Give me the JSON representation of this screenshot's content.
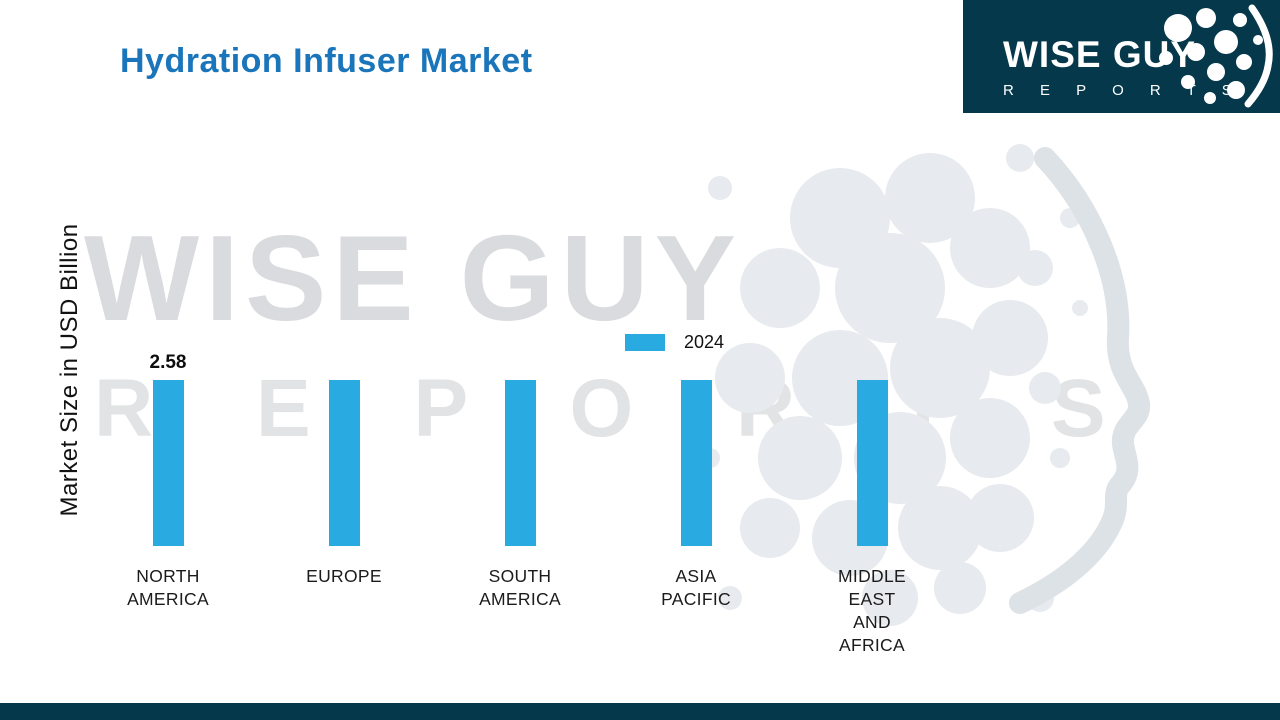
{
  "title": "Hydration Infuser Market",
  "logo": {
    "line1": "WISE GUY",
    "line2": "R E P O R T S"
  },
  "watermark": {
    "line1": "WISE GUY",
    "line2": "R E P O R T S"
  },
  "chart_data": {
    "type": "bar",
    "title": "Hydration Infuser Market",
    "ylabel": "Market Size in USD Billion",
    "xlabel": "",
    "grid": false,
    "legend_position": "top-center",
    "categories": [
      "NORTH AMERICA",
      "EUROPE",
      "SOUTH AMERICA",
      "ASIA PACIFIC",
      "MIDDLE EAST AND AFRICA"
    ],
    "category_lines": [
      [
        "NORTH",
        "AMERICA"
      ],
      [
        "EUROPE"
      ],
      [
        "SOUTH",
        "AMERICA"
      ],
      [
        "ASIA",
        "PACIFIC"
      ],
      [
        "MIDDLE",
        "EAST",
        "AND",
        "AFRICA"
      ]
    ],
    "series": [
      {
        "name": "2024",
        "color": "#29abe2",
        "values": [
          2.58,
          2.58,
          2.58,
          2.58,
          2.58
        ]
      }
    ],
    "data_labels": [
      "2.58",
      "",
      "",
      "",
      ""
    ],
    "ylim": [
      0,
      3
    ],
    "legend": [
      {
        "label": "2024",
        "color": "#29abe2"
      }
    ]
  },
  "colors": {
    "title": "#1b75bb",
    "bar": "#29abe2",
    "dark_teal": "#04384a",
    "watermark": "#d9d9d9",
    "text": "#1a1a1a"
  }
}
